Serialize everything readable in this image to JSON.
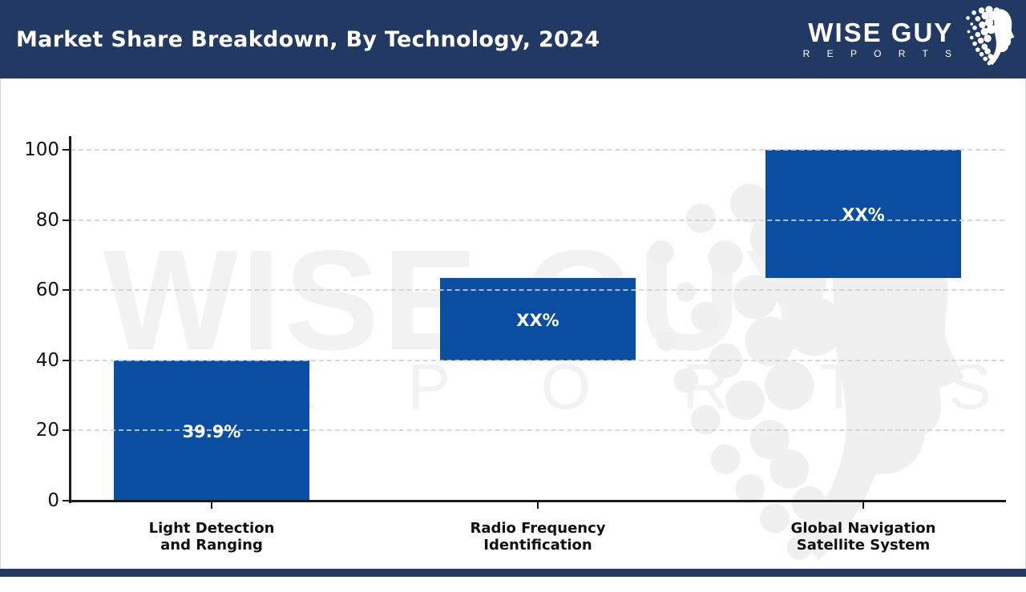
{
  "header": {
    "title": "Market Share Breakdown, By Technology, 2024",
    "logo": {
      "name": "WISE GUY",
      "subname": "R E P O R T S"
    }
  },
  "watermark": {
    "line1": "WISE GUY",
    "line2": "R E P O R T S"
  },
  "colors": {
    "header_bg": "#213963",
    "footer_bg": "#213963",
    "bar": "#0b4da0",
    "grid": "#d4d4d4",
    "axis": "#1a1a1a",
    "bar_label_text": "#ffffff",
    "watermark": "#f2f2f2"
  },
  "chart_data": {
    "type": "bar",
    "subtype": "floating-waterfall",
    "title": "Market Share Breakdown, By Technology, 2024",
    "categories": [
      [
        "Light Detection",
        "and Ranging"
      ],
      [
        "Radio Frequency",
        "Identification"
      ],
      [
        "Global Navigation",
        "Satellite System"
      ]
    ],
    "bars": [
      {
        "start": 0,
        "end": 39.9,
        "label": "39.9%"
      },
      {
        "start": 39.9,
        "end": 63.5,
        "label": "XX%"
      },
      {
        "start": 63.5,
        "end": 100,
        "label": "XX%"
      }
    ],
    "yticks": [
      0,
      20,
      40,
      60,
      80,
      100
    ],
    "ylim": [
      0,
      100
    ],
    "xlabel": "",
    "ylabel": "",
    "grid": "horizontal-dashed",
    "legend": "none"
  }
}
